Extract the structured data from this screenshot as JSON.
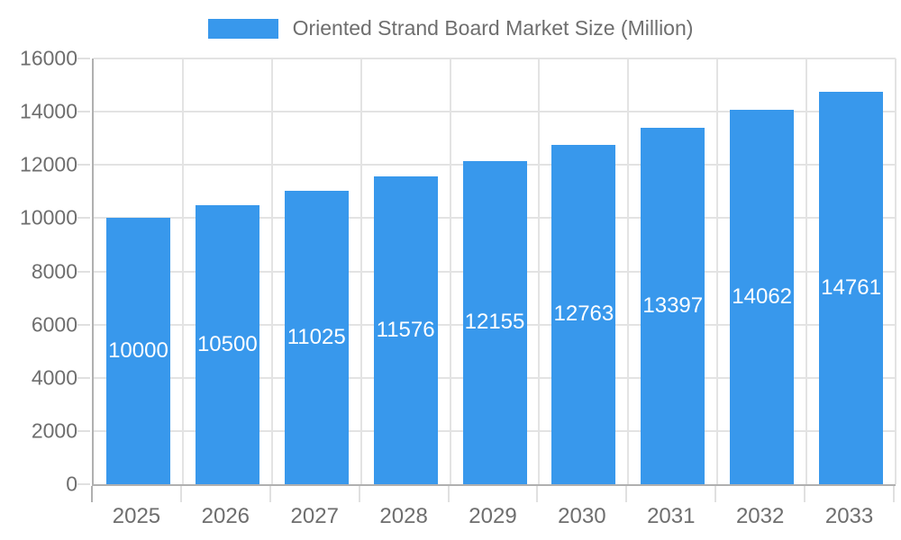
{
  "chart_data": {
    "type": "bar",
    "title": "Oriented Strand Board Market Size (Million)",
    "series_name": "Oriented Strand Board Market Size (Million)",
    "categories": [
      "2025",
      "2026",
      "2027",
      "2028",
      "2029",
      "2030",
      "2031",
      "2032",
      "2033"
    ],
    "values": [
      10000,
      10500,
      11025,
      11576,
      12155,
      12763,
      13397,
      14062,
      14761
    ],
    "xlabel": "",
    "ylabel": "",
    "ylim": [
      0,
      16000
    ],
    "ytick_step": 2000,
    "grid": true,
    "legend_position": "top-center",
    "bar_labels_visible": true
  },
  "colors": {
    "bar": "#3898EC",
    "bar_label_text": "#ffffff",
    "axis_text": "#6e6e6e",
    "axis_border": "#b0b0b0",
    "gridline": "#e3e3e3",
    "tick": "#e0e0e0",
    "background": "#ffffff"
  }
}
